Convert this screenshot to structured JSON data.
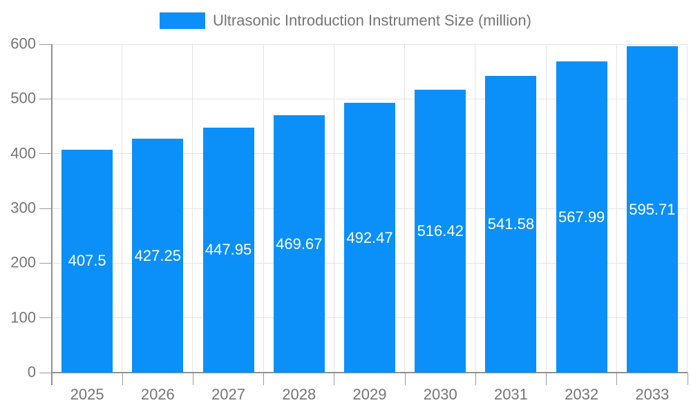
{
  "chart_data": {
    "type": "bar",
    "title": "Ultrasonic Introduction Instrument Size (million)",
    "legend_entries": [
      "Ultrasonic Introduction Instrument Size (million)"
    ],
    "legend_position": "top-center",
    "categories": [
      "2025",
      "2026",
      "2027",
      "2028",
      "2029",
      "2030",
      "2031",
      "2032",
      "2033"
    ],
    "values": [
      407.5,
      427.25,
      447.95,
      469.67,
      492.47,
      516.42,
      541.58,
      567.99,
      595.71
    ],
    "value_labels_shown": true,
    "value_label_position": "inside-center",
    "xlabel": "",
    "ylabel": "",
    "ylim": [
      0,
      600
    ],
    "yticks": [
      0,
      100,
      200,
      300,
      400,
      500,
      600
    ],
    "grid": true,
    "grid_vertical": true,
    "colors": {
      "bar": "#0a90f8",
      "grid": "#e3e3e3",
      "axis": "#8f8f8f",
      "tick": "#999999",
      "tick_label": "#757575",
      "legend_label": "#757575",
      "value_label": "#ffffff",
      "background": "#ffffff"
    }
  }
}
